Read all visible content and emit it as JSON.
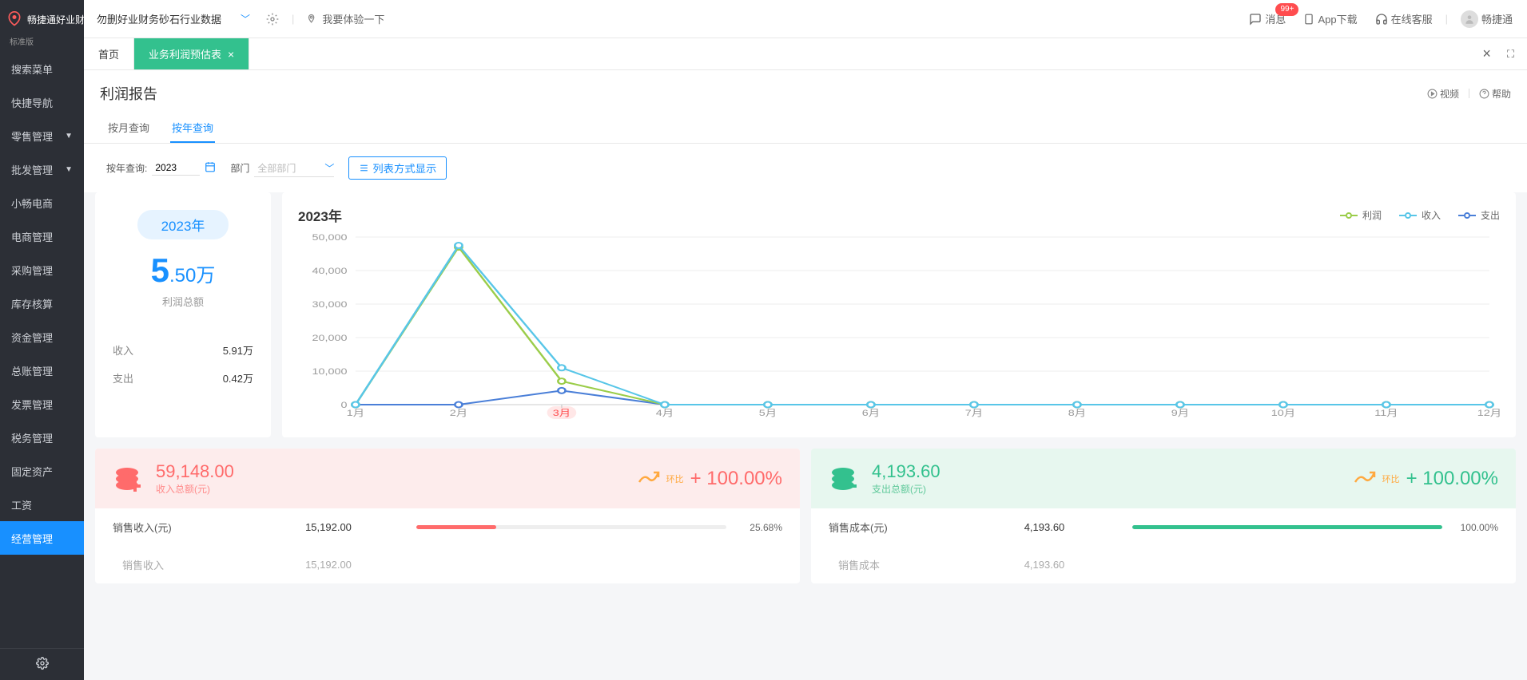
{
  "logo": {
    "text": "畅捷通好业财",
    "sub": "标准版"
  },
  "sidebar": {
    "items": [
      {
        "label": "搜索菜单",
        "chev": false
      },
      {
        "label": "快捷导航",
        "chev": false
      },
      {
        "label": "零售管理",
        "chev": true
      },
      {
        "label": "批发管理",
        "chev": true
      },
      {
        "label": "小畅电商",
        "chev": false
      },
      {
        "label": "电商管理",
        "chev": false
      },
      {
        "label": "采购管理",
        "chev": false
      },
      {
        "label": "库存核算",
        "chev": false
      },
      {
        "label": "资金管理",
        "chev": false
      },
      {
        "label": "总账管理",
        "chev": false
      },
      {
        "label": "发票管理",
        "chev": false
      },
      {
        "label": "税务管理",
        "chev": false
      },
      {
        "label": "固定资产",
        "chev": false
      },
      {
        "label": "工资",
        "chev": false
      },
      {
        "label": "经营管理",
        "chev": false,
        "active": true
      }
    ]
  },
  "topbar": {
    "org": "勿删好业财务砂石行业数据",
    "try_text": "我要体验一下",
    "msg": "消息",
    "msg_badge": "99+",
    "app": "App下载",
    "cs": "在线客服",
    "user": "畅捷通"
  },
  "tabs": {
    "home": "首页",
    "active": "业务利润预估表",
    "close_sym": "×",
    "fs_sym": "⛶"
  },
  "page": {
    "title": "利润报告",
    "video": "视频",
    "help": "帮助",
    "sub_tabs": {
      "month": "按月查询",
      "year": "按年查询"
    },
    "filter": {
      "year_label": "按年查询:",
      "year_value": "2023",
      "dept_label": "部门",
      "dept_placeholder": "全部部门",
      "list_btn": "列表方式显示"
    }
  },
  "summary": {
    "year_pill": "2023年",
    "big_int": "5",
    "big_frac": ".50万",
    "big_label": "利润总额",
    "rows": [
      {
        "lbl": "收入",
        "val": "5.91万"
      },
      {
        "lbl": "支出",
        "val": "0.42万"
      }
    ]
  },
  "chart": {
    "title": "2023年",
    "legend": [
      {
        "label": "利润",
        "color": "#9bcd4a"
      },
      {
        "label": "收入",
        "color": "#58c6e8"
      },
      {
        "label": "支出",
        "color": "#4a7fd8"
      }
    ],
    "y_ticks": [
      "0",
      "10,000",
      "20,000",
      "30,000",
      "40,000",
      "50,000"
    ],
    "x_labels": [
      "1月",
      "2月",
      "3月",
      "4月",
      "5月",
      "6月",
      "7月",
      "8月",
      "9月",
      "10月",
      "11月",
      "12月"
    ],
    "highlight_x_index": 2,
    "ylim": [
      0,
      50000
    ],
    "series": {
      "profit": [
        0,
        47000,
        7000,
        0,
        0,
        0,
        0,
        0,
        0,
        0,
        0,
        0
      ],
      "income": [
        0,
        47500,
        11000,
        0,
        0,
        0,
        0,
        0,
        0,
        0,
        0,
        0
      ],
      "expense": [
        0,
        0,
        4200,
        0,
        0,
        0,
        0,
        0,
        0,
        0,
        0,
        0
      ]
    },
    "colors": {
      "profit": "#9bcd4a",
      "income": "#58c6e8",
      "expense": "#4a7fd8",
      "grid": "#eeeeee",
      "axis_text": "#999999",
      "highlight_bg": "#ffe7e7",
      "highlight_text": "#ff4d4f"
    },
    "background": "#ffffff"
  },
  "metrics": [
    {
      "cls": "red",
      "value": "59,148.00",
      "label": "收入总额(元)",
      "hb": "环比",
      "pct": "+ 100.00%",
      "rows": [
        {
          "name": "销售收入(元)",
          "val": "15,192.00",
          "bar_pct": 25.68,
          "bar_label": "25.68%",
          "sub": false,
          "bar_color": "red"
        },
        {
          "name": "销售收入",
          "val": "15,192.00",
          "sub": true
        }
      ]
    },
    {
      "cls": "green",
      "value": "4,193.60",
      "label": "支出总额(元)",
      "hb": "环比",
      "pct": "+ 100.00%",
      "rows": [
        {
          "name": "销售成本(元)",
          "val": "4,193.60",
          "bar_pct": 100,
          "bar_label": "100.00%",
          "sub": false,
          "bar_color": "green"
        },
        {
          "name": "销售成本",
          "val": "4,193.60",
          "sub": true
        }
      ]
    }
  ]
}
